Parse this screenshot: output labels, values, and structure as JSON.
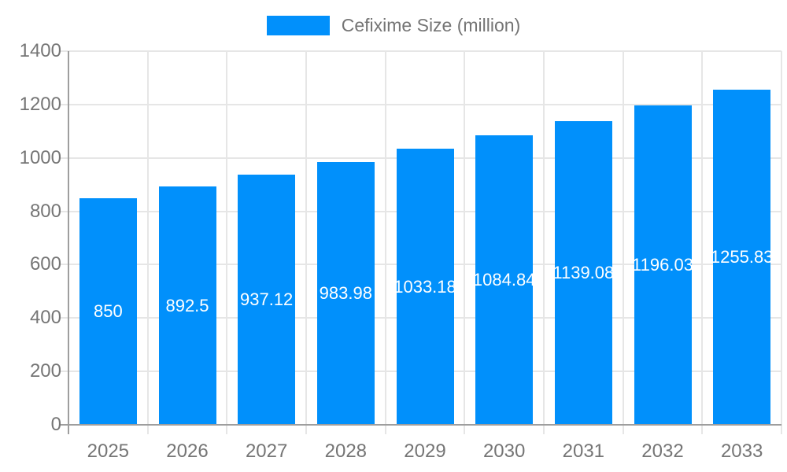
{
  "colors": {
    "bar": "#0190fb",
    "grid": "#e6e6e6",
    "axis": "#9e9e9e",
    "axis_text": "#757575",
    "bar_label_text": "#ffffff",
    "background": "#ffffff"
  },
  "chart_data": {
    "type": "bar",
    "title": "Cefixime Size (million)",
    "legend_position": "top",
    "grid": true,
    "categories": [
      "2025",
      "2026",
      "2027",
      "2028",
      "2029",
      "2030",
      "2031",
      "2032",
      "2033"
    ],
    "series": [
      {
        "name": "Cefixime Size (million)",
        "values": [
          850,
          892.5,
          937.12,
          983.98,
          1033.18,
          1084.84,
          1139.08,
          1196.03,
          1255.83
        ],
        "value_labels": [
          "850",
          "892.5",
          "937.12",
          "983.98",
          "1033.18",
          "1084.84",
          "1139.08",
          "1196.03",
          "1255.83"
        ]
      }
    ],
    "xlabel": "",
    "ylabel": "",
    "ylim": [
      0,
      1400
    ],
    "yticks": [
      0,
      200,
      400,
      600,
      800,
      1000,
      1200,
      1400
    ]
  }
}
